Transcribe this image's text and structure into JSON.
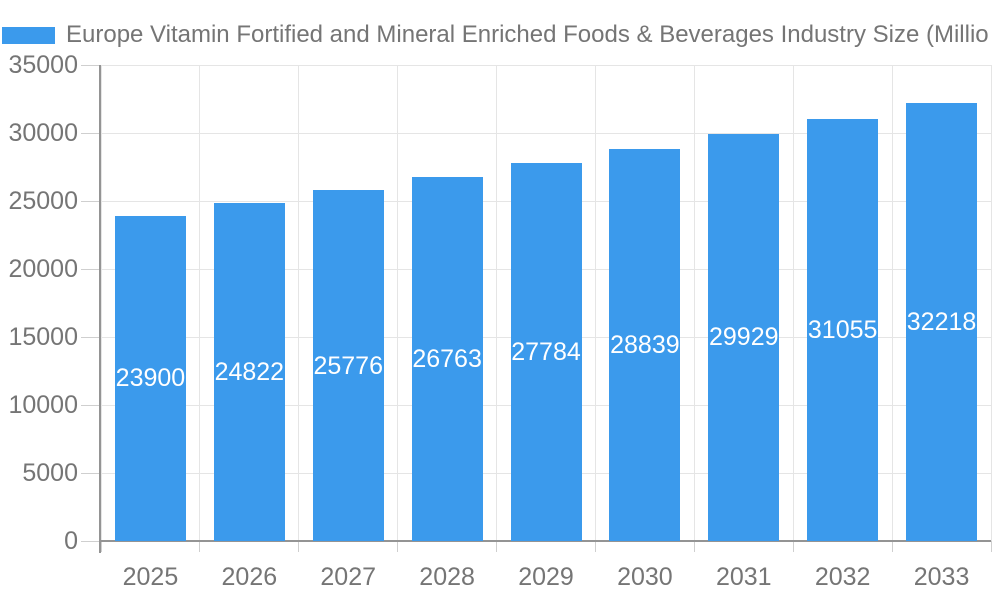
{
  "legend": {
    "label": "Europe Vitamin Fortified and Mineral Enriched Foods & Beverages Industry Size (Millio",
    "swatch_color": "#3b9aec"
  },
  "colors": {
    "bar": "#3b9aec",
    "grid": "#e5e5e5",
    "tick": "#cfcfcf",
    "axis": "#949494",
    "tick_label": "#757575",
    "bar_label": "#ffffff",
    "background": "#ffffff"
  },
  "chart_data": {
    "type": "bar",
    "title": "Europe Vitamin Fortified and Mineral Enriched Foods & Beverages Industry Size (Millio",
    "categories": [
      "2025",
      "2026",
      "2027",
      "2028",
      "2029",
      "2030",
      "2031",
      "2032",
      "2033"
    ],
    "series": [
      {
        "name": "Europe Vitamin Fortified and Mineral Enriched Foods & Beverages Industry Size (Millio",
        "values": [
          23900,
          24822,
          25776,
          26763,
          27784,
          28839,
          29929,
          31055,
          32218
        ]
      }
    ],
    "xlabel": "",
    "ylabel": "",
    "ylim": [
      0,
      35000
    ],
    "yticks": [
      0,
      5000,
      10000,
      15000,
      20000,
      25000,
      30000,
      35000
    ],
    "grid": true,
    "legend_position": "top-left",
    "value_labels": "inside-center"
  }
}
